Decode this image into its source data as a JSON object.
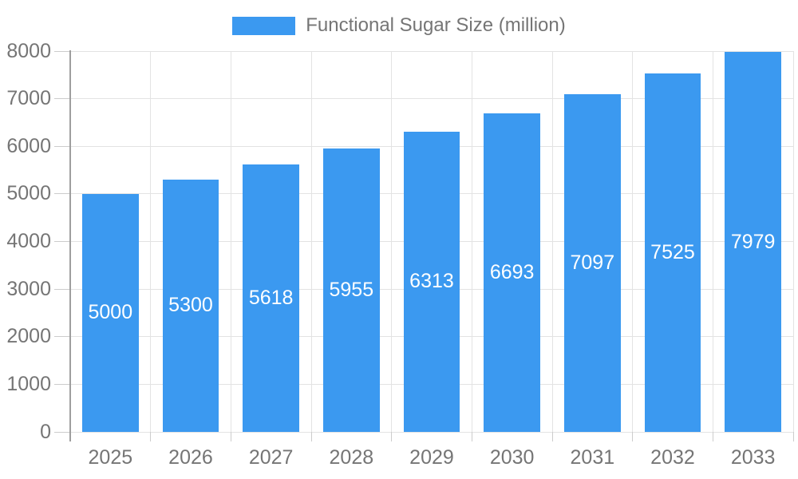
{
  "legend": {
    "label": "Functional Sugar Size (million)"
  },
  "chart_data": {
    "type": "bar",
    "title": "Functional Sugar Size (million)",
    "categories": [
      "2025",
      "2026",
      "2027",
      "2028",
      "2029",
      "2030",
      "2031",
      "2032",
      "2033"
    ],
    "values": [
      5000,
      5300,
      5618,
      5955,
      6313,
      6693,
      7097,
      7525,
      7979
    ],
    "series": [
      {
        "name": "Functional Sugar Size (million)",
        "values": [
          5000,
          5300,
          5618,
          5955,
          6313,
          6693,
          7097,
          7525,
          7979
        ]
      }
    ],
    "value_labels_shown": true,
    "xlabel": "",
    "ylabel": "",
    "ylim": [
      0,
      8000
    ],
    "ytick_step": 1000,
    "yticks": [
      0,
      1000,
      2000,
      3000,
      4000,
      5000,
      6000,
      7000,
      8000
    ],
    "grid": true,
    "legend_position": "top-center",
    "colors": {
      "bar": "#3B99F0",
      "value_label": "#FFFFFF",
      "axis_label": "#757575",
      "legend_text": "#757575",
      "gridline": "#E3E3E3",
      "tick": "#CCCCCC",
      "axis_line": "#9E9E9E",
      "background": "#FFFFFF"
    }
  }
}
